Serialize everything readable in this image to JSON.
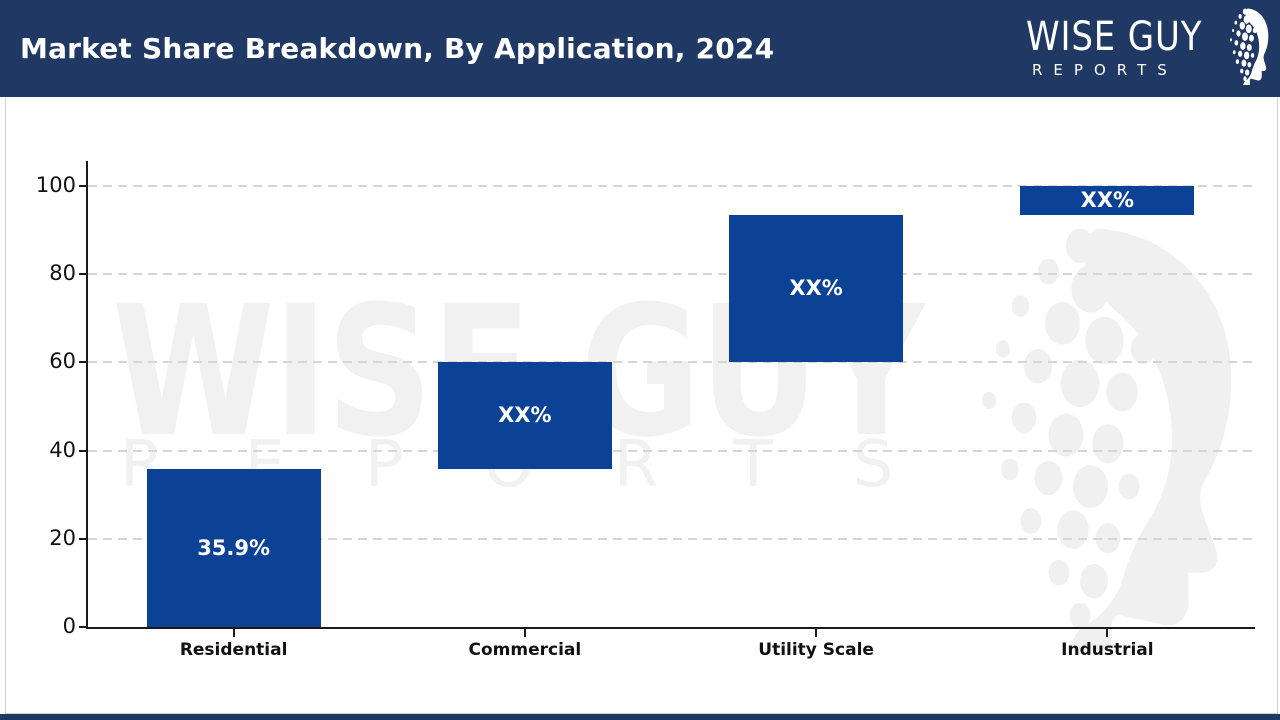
{
  "header": {
    "title": "Market Share Breakdown, By Application, 2024",
    "background": "#1f3864"
  },
  "logo": {
    "line1": "WISE GUY",
    "line2": "REPORTS"
  },
  "watermark": {
    "line1": "WISE GUY",
    "line2": "REPORTS"
  },
  "chart_data": {
    "type": "bar",
    "subtype": "waterfall",
    "title": "Market Share Breakdown, By Application, 2024",
    "categories": [
      "Residential",
      "Commercial",
      "Utility Scale",
      "Industrial"
    ],
    "segments": [
      {
        "category": "Residential",
        "start": 0,
        "end": 35.9,
        "label": "35.9%"
      },
      {
        "category": "Commercial",
        "start": 35.9,
        "end": 60.2,
        "label": "XX%"
      },
      {
        "category": "Utility Scale",
        "start": 60.2,
        "end": 93.5,
        "label": "XX%"
      },
      {
        "category": "Industrial",
        "start": 93.5,
        "end": 100.0,
        "label": "XX%"
      }
    ],
    "xlabel": "",
    "ylabel": "",
    "ylim": [
      0,
      100
    ],
    "yticks": [
      0,
      20,
      40,
      60,
      80,
      100
    ],
    "grid": "horizontal-dashed",
    "legend": "none",
    "colors": {
      "bar": "#0b4296",
      "bar_label": "#ffffff",
      "axis": "#1a1a1a",
      "gridline": "#d6d6d6",
      "watermark": "#f1f1f1"
    }
  }
}
